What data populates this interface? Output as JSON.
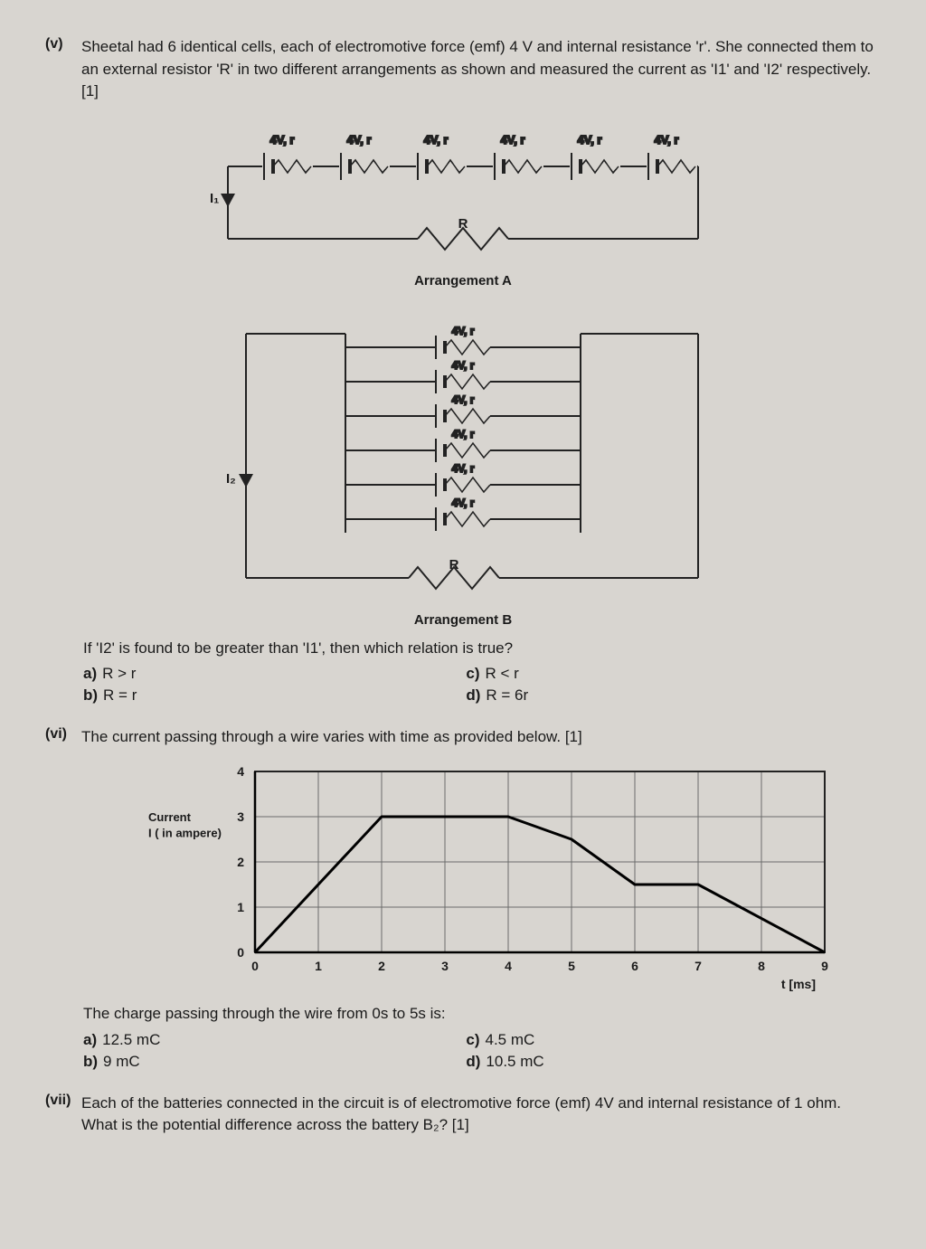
{
  "qV": {
    "num": "(v)",
    "text1": "Sheetal had 6 identical cells, each of electromotive force (emf) 4 V and internal resistance 'r'. She connected them to an external resistor 'R' in two different arrangements as shown and measured the current as 'I1' and 'I2' respectively. [1]",
    "cellLabel": "4V, r",
    "I1": "I₁",
    "I2": "I₂",
    "R": "R",
    "arrA": "Arrangement A",
    "arrB": "Arrangement B",
    "subq": "If 'I2' is found to be greater than 'I1', then which relation is true?",
    "opts": {
      "a": "R > r",
      "b": "R = r",
      "c": "R < r",
      "d": "R = 6r"
    },
    "colors": {
      "stroke": "#222222",
      "bg": "#d8d5d0",
      "text": "#1a1a1a"
    }
  },
  "qVI": {
    "num": "(vi)",
    "text": "The current passing through a wire varies with time as provided below. [1]",
    "chart": {
      "type": "line",
      "xlabel": "t [ms]",
      "ylabel_l1": "Current",
      "ylabel_l2": "I ( in ampere)",
      "xlim": [
        0,
        9
      ],
      "ylim": [
        0,
        4
      ],
      "xticks": [
        0,
        1,
        2,
        3,
        4,
        5,
        6,
        7,
        8,
        9
      ],
      "yticks": [
        0,
        1,
        2,
        3,
        4
      ],
      "points": [
        [
          0,
          0
        ],
        [
          2,
          3
        ],
        [
          4,
          3
        ],
        [
          5,
          2.5
        ],
        [
          6,
          1.5
        ],
        [
          7,
          1.5
        ],
        [
          9,
          0
        ]
      ],
      "grid_color": "#6b6b6b",
      "line_color": "#000000",
      "bg": "#d8d5d0"
    },
    "opts": {
      "a": "12.5 mC",
      "b": "9 mC",
      "c": "4.5 mC",
      "d": "10.5 mC"
    },
    "footq": "The charge passing through the wire from 0s to 5s is:"
  },
  "qVII": {
    "num": "(vii)",
    "text": "Each of the batteries connected in the circuit is of electromotive force (emf) 4V and internal resistance of 1 ohm. What is the potential difference across the battery B₂? [1]"
  }
}
